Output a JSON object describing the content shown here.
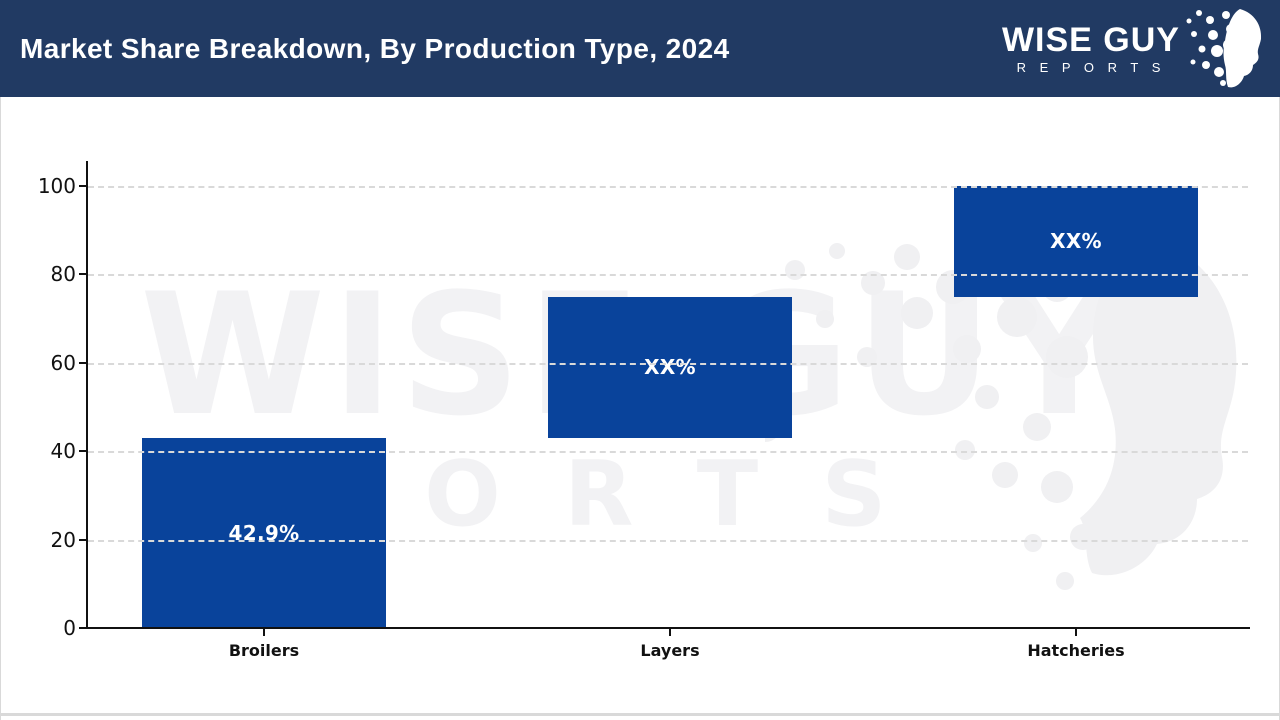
{
  "header": {
    "title": "Market Share Breakdown, By Production Type, 2024",
    "logo_line1": "WISE GUY",
    "logo_line2": "R E P O R T S"
  },
  "watermark": {
    "line1": "WISE GUY",
    "line2": "P O R T S"
  },
  "chart_data": {
    "type": "bar",
    "subtype": "floating_segment_waterfall",
    "title": "Market Share Breakdown, By Production Type, 2024",
    "categories": [
      "Broilers",
      "Layers",
      "Hatcheries"
    ],
    "segments": [
      {
        "category": "Broilers",
        "start": 0,
        "end": 42.9,
        "label": "42.9%"
      },
      {
        "category": "Layers",
        "start": 42.9,
        "end": 75,
        "label": "XX%"
      },
      {
        "category": "Hatcheries",
        "start": 75,
        "end": 100,
        "label": "XX%"
      }
    ],
    "yticks": [
      0,
      20,
      40,
      60,
      80,
      100
    ],
    "ylim": [
      0,
      105
    ],
    "xlabel": "",
    "ylabel": "",
    "legend": "none",
    "grid": {
      "axis": "y",
      "style": "dashed",
      "color": "#d9d9d9"
    },
    "bar_color": "#09439b",
    "bar_label_color": "#ffffff"
  },
  "colors": {
    "header_bg": "#213a63",
    "watermark_gray": "#f2f2f4",
    "axis_color": "#111111"
  }
}
